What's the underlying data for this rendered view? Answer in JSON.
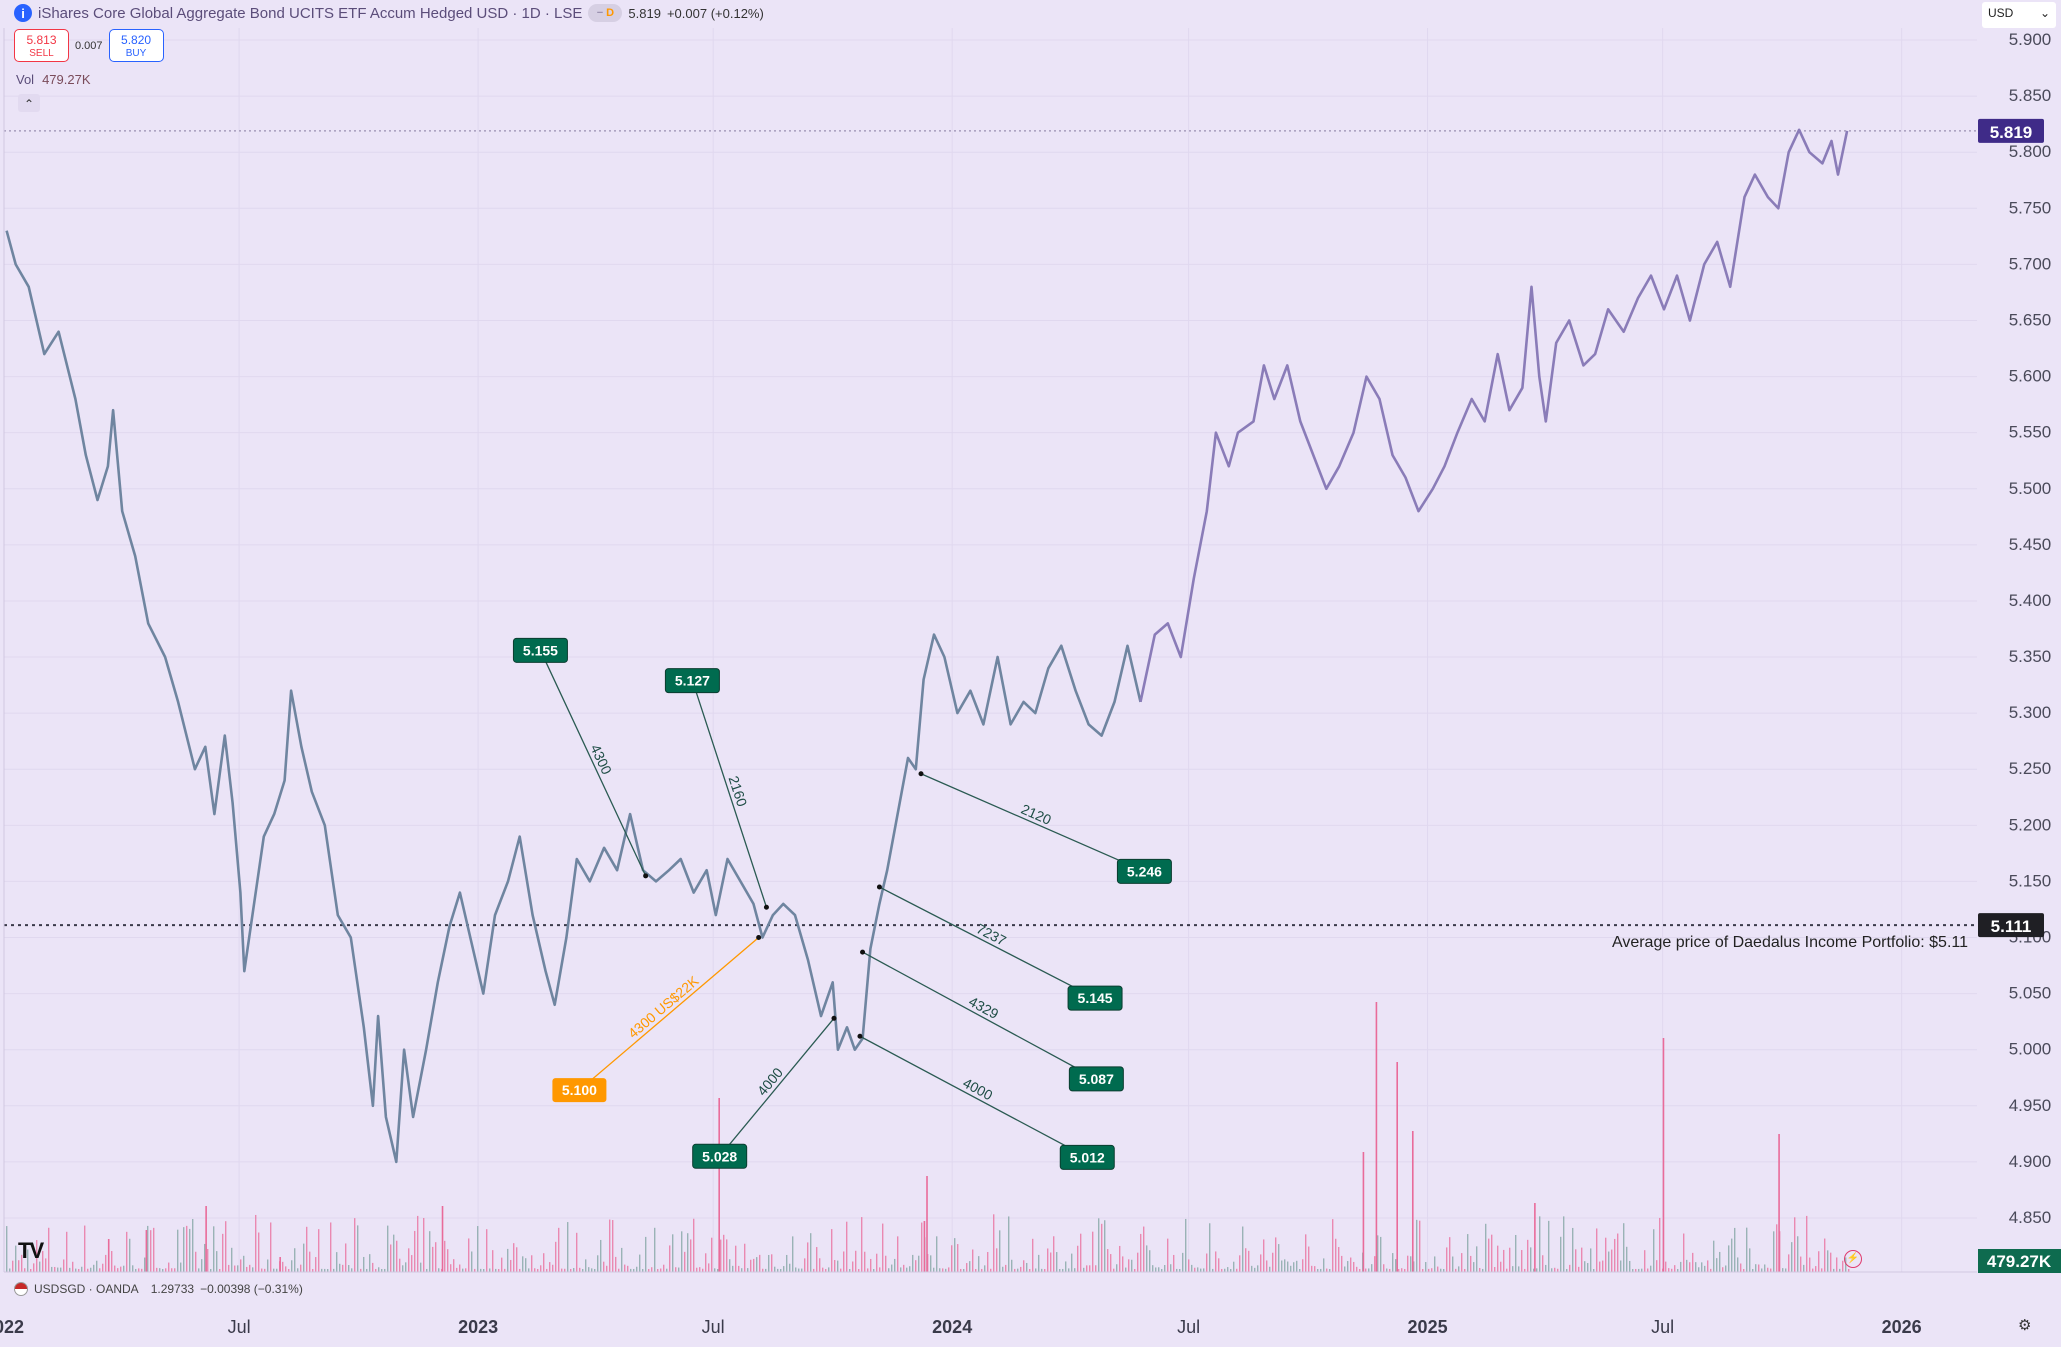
{
  "header": {
    "title": "iShares Core Global Aggregate Bond UCITS ETF Accum Hedged USD · 1D · LSE",
    "badge": "D",
    "price": "5.819",
    "change": "+0.007 (+0.12%)"
  },
  "trade": {
    "sell_price": "5.813",
    "sell_label": "SELL",
    "spread": "0.007",
    "buy_price": "5.820",
    "buy_label": "BUY"
  },
  "volume": {
    "label": "Vol",
    "value": "479.27K"
  },
  "currency_select": {
    "value": "USD"
  },
  "subchart": {
    "label": "USDSGD · OANDA",
    "value": "1.29733",
    "change": "−0.00398 (−0.31%)"
  },
  "colors": {
    "line_old": "#6f85a0",
    "line_new": "#8a7cb8",
    "accent": "#006b4f",
    "orange": "#ff9800",
    "vol_up": "#e96b9a",
    "vol_down": "#7fa3a0"
  },
  "chart_data": {
    "type": "line",
    "title": "",
    "ylim": [
      4.85,
      5.9
    ],
    "y_ticks": [
      "5.900",
      "5.850",
      "5.800",
      "5.750",
      "5.700",
      "5.650",
      "5.600",
      "5.550",
      "5.500",
      "5.450",
      "5.400",
      "5.350",
      "5.300",
      "5.250",
      "5.200",
      "5.150",
      "5.100",
      "5.050",
      "5.000",
      "4.950",
      "4.900",
      "4.850"
    ],
    "x_ticks": [
      {
        "label": "2022",
        "date": "2022-01-01"
      },
      {
        "label": "Jul",
        "date": "2022-07-01"
      },
      {
        "label": "2023",
        "date": "2023-01-01"
      },
      {
        "label": "Jul",
        "date": "2023-07-01"
      },
      {
        "label": "2024",
        "date": "2024-01-01"
      },
      {
        "label": "Jul",
        "date": "2024-07-01"
      },
      {
        "label": "2025",
        "date": "2025-01-01"
      },
      {
        "label": "Jul",
        "date": "2025-07-01"
      },
      {
        "label": "2026",
        "date": "2026-01-01"
      }
    ],
    "x_range": [
      "2022-01-01",
      "2026-02-28"
    ],
    "series": [
      {
        "values": [
          [
            "2022-01-03",
            5.73
          ],
          [
            "2022-01-10",
            5.7
          ],
          [
            "2022-01-20",
            5.68
          ],
          [
            "2022-02-01",
            5.62
          ],
          [
            "2022-02-12",
            5.64
          ],
          [
            "2022-02-25",
            5.58
          ],
          [
            "2022-03-05",
            5.53
          ],
          [
            "2022-03-14",
            5.49
          ],
          [
            "2022-03-22",
            5.52
          ],
          [
            "2022-03-26",
            5.57
          ],
          [
            "2022-04-02",
            5.48
          ],
          [
            "2022-04-12",
            5.44
          ],
          [
            "2022-04-22",
            5.38
          ],
          [
            "2022-05-05",
            5.35
          ],
          [
            "2022-05-15",
            5.31
          ],
          [
            "2022-05-28",
            5.25
          ],
          [
            "2022-06-05",
            5.27
          ],
          [
            "2022-06-12",
            5.21
          ],
          [
            "2022-06-20",
            5.28
          ],
          [
            "2022-06-26",
            5.22
          ],
          [
            "2022-07-02",
            5.14
          ],
          [
            "2022-07-05",
            5.07
          ],
          [
            "2022-07-10",
            5.11
          ],
          [
            "2022-07-20",
            5.19
          ],
          [
            "2022-07-28",
            5.21
          ],
          [
            "2022-08-05",
            5.24
          ],
          [
            "2022-08-10",
            5.32
          ],
          [
            "2022-08-18",
            5.27
          ],
          [
            "2022-08-26",
            5.23
          ],
          [
            "2022-09-05",
            5.2
          ],
          [
            "2022-09-15",
            5.12
          ],
          [
            "2022-09-25",
            5.1
          ],
          [
            "2022-10-05",
            5.02
          ],
          [
            "2022-10-12",
            4.95
          ],
          [
            "2022-10-16",
            5.03
          ],
          [
            "2022-10-22",
            4.94
          ],
          [
            "2022-10-30",
            4.9
          ],
          [
            "2022-11-05",
            5.0
          ],
          [
            "2022-11-12",
            4.94
          ],
          [
            "2022-11-22",
            5.0
          ],
          [
            "2022-12-01",
            5.06
          ],
          [
            "2022-12-10",
            5.11
          ],
          [
            "2022-12-18",
            5.14
          ],
          [
            "2022-12-26",
            5.1
          ],
          [
            "2023-01-05",
            5.05
          ],
          [
            "2023-01-14",
            5.12
          ],
          [
            "2023-01-24",
            5.15
          ],
          [
            "2023-02-02",
            5.19
          ],
          [
            "2023-02-12",
            5.12
          ],
          [
            "2023-02-22",
            5.07
          ],
          [
            "2023-03-01",
            5.04
          ],
          [
            "2023-03-10",
            5.1
          ],
          [
            "2023-03-18",
            5.17
          ],
          [
            "2023-03-28",
            5.15
          ],
          [
            "2023-04-08",
            5.18
          ],
          [
            "2023-04-18",
            5.16
          ],
          [
            "2023-04-28",
            5.21
          ],
          [
            "2023-05-08",
            5.16
          ],
          [
            "2023-05-18",
            5.15
          ],
          [
            "2023-05-28",
            5.16
          ],
          [
            "2023-06-06",
            5.17
          ],
          [
            "2023-06-16",
            5.14
          ],
          [
            "2023-06-26",
            5.16
          ],
          [
            "2023-07-03",
            5.12
          ],
          [
            "2023-07-12",
            5.17
          ],
          [
            "2023-07-22",
            5.15
          ],
          [
            "2023-08-01",
            5.13
          ],
          [
            "2023-08-08",
            5.1
          ],
          [
            "2023-08-16",
            5.12
          ],
          [
            "2023-08-24",
            5.13
          ],
          [
            "2023-09-02",
            5.12
          ],
          [
            "2023-09-12",
            5.08
          ],
          [
            "2023-09-22",
            5.03
          ],
          [
            "2023-10-01",
            5.06
          ],
          [
            "2023-10-05",
            5.0
          ],
          [
            "2023-10-12",
            5.02
          ],
          [
            "2023-10-18",
            5.0
          ],
          [
            "2023-10-24",
            5.01
          ],
          [
            "2023-10-30",
            5.09
          ],
          [
            "2023-11-06",
            5.13
          ],
          [
            "2023-11-12",
            5.16
          ],
          [
            "2023-11-20",
            5.21
          ],
          [
            "2023-11-28",
            5.26
          ],
          [
            "2023-12-04",
            5.25
          ],
          [
            "2023-12-10",
            5.33
          ],
          [
            "2023-12-18",
            5.37
          ],
          [
            "2023-12-26",
            5.35
          ],
          [
            "2024-01-05",
            5.3
          ],
          [
            "2024-01-15",
            5.32
          ],
          [
            "2024-01-25",
            5.29
          ],
          [
            "2024-02-05",
            5.35
          ],
          [
            "2024-02-15",
            5.29
          ],
          [
            "2024-02-25",
            5.31
          ],
          [
            "2024-03-05",
            5.3
          ],
          [
            "2024-03-15",
            5.34
          ],
          [
            "2024-03-25",
            5.36
          ],
          [
            "2024-04-05",
            5.32
          ],
          [
            "2024-04-15",
            5.29
          ],
          [
            "2024-04-25",
            5.28
          ],
          [
            "2024-05-05",
            5.31
          ],
          [
            "2024-05-15",
            5.36
          ],
          [
            "2024-05-25",
            5.31
          ],
          [
            "2024-06-05",
            5.37
          ],
          [
            "2024-06-15",
            5.38
          ],
          [
            "2024-06-25",
            5.35
          ],
          [
            "2024-07-05",
            5.42
          ],
          [
            "2024-07-15",
            5.48
          ],
          [
            "2024-07-22",
            5.55
          ],
          [
            "2024-08-01",
            5.52
          ],
          [
            "2024-08-08",
            5.55
          ],
          [
            "2024-08-20",
            5.56
          ],
          [
            "2024-08-28",
            5.61
          ],
          [
            "2024-09-05",
            5.58
          ],
          [
            "2024-09-15",
            5.61
          ],
          [
            "2024-09-25",
            5.56
          ],
          [
            "2024-10-05",
            5.53
          ],
          [
            "2024-10-15",
            5.5
          ],
          [
            "2024-10-25",
            5.52
          ],
          [
            "2024-11-05",
            5.55
          ],
          [
            "2024-11-15",
            5.6
          ],
          [
            "2024-11-25",
            5.58
          ],
          [
            "2024-12-05",
            5.53
          ],
          [
            "2024-12-15",
            5.51
          ],
          [
            "2024-12-25",
            5.48
          ],
          [
            "2025-01-05",
            5.5
          ],
          [
            "2025-01-14",
            5.52
          ],
          [
            "2025-01-24",
            5.55
          ],
          [
            "2025-02-04",
            5.58
          ],
          [
            "2025-02-14",
            5.56
          ],
          [
            "2025-02-24",
            5.62
          ],
          [
            "2025-03-05",
            5.57
          ],
          [
            "2025-03-15",
            5.59
          ],
          [
            "2025-03-22",
            5.68
          ],
          [
            "2025-03-28",
            5.6
          ],
          [
            "2025-04-02",
            5.56
          ],
          [
            "2025-04-10",
            5.63
          ],
          [
            "2025-04-20",
            5.65
          ],
          [
            "2025-05-01",
            5.61
          ],
          [
            "2025-05-10",
            5.62
          ],
          [
            "2025-05-20",
            5.66
          ],
          [
            "2025-06-01",
            5.64
          ],
          [
            "2025-06-12",
            5.67
          ],
          [
            "2025-06-22",
            5.69
          ],
          [
            "2025-07-02",
            5.66
          ],
          [
            "2025-07-12",
            5.69
          ],
          [
            "2025-07-22",
            5.65
          ],
          [
            "2025-08-02",
            5.7
          ],
          [
            "2025-08-12",
            5.72
          ],
          [
            "2025-08-22",
            5.68
          ],
          [
            "2025-09-02",
            5.76
          ],
          [
            "2025-09-10",
            5.78
          ],
          [
            "2025-09-20",
            5.76
          ],
          [
            "2025-09-28",
            5.75
          ],
          [
            "2025-10-06",
            5.8
          ],
          [
            "2025-10-14",
            5.82
          ],
          [
            "2025-10-22",
            5.8
          ],
          [
            "2025-11-01",
            5.79
          ],
          [
            "2025-11-08",
            5.81
          ],
          [
            "2025-11-13",
            5.78
          ],
          [
            "2025-11-20",
            5.819
          ]
        ]
      }
    ],
    "volume_spikes": [
      [
        "2022-03-22",
        11000
      ],
      [
        "2022-04-20",
        14000
      ],
      [
        "2022-06-05",
        22000
      ],
      [
        "2022-08-01",
        5000
      ],
      [
        "2022-12-04",
        22000
      ],
      [
        "2023-07-05",
        58000
      ],
      [
        "2023-12-12",
        32000
      ],
      [
        "2023-12-10",
        17000
      ],
      [
        "2024-11-12",
        40000
      ],
      [
        "2024-11-22",
        90000
      ],
      [
        "2024-12-08",
        70000
      ],
      [
        "2024-12-20",
        47000
      ],
      [
        "2025-07-01",
        78000
      ],
      [
        "2025-09-28",
        46000
      ],
      [
        "2025-03-24",
        23000
      ]
    ],
    "volume_max": 100000,
    "horizontal_lines": [
      {
        "value": 5.111,
        "label": "5.111",
        "note": "Average price of Daedalus Income Portfolio: $5.11"
      },
      {
        "value": 5.819,
        "label": "5.819"
      }
    ],
    "volume_badge": "479.27K",
    "annotations": [
      {
        "label": "5.155",
        "line_text": "4300",
        "from": [
          "2023-05-10",
          5.155
        ],
        "to": [
          "2023-02-18",
          5.356
        ],
        "color": "green"
      },
      {
        "label": "5.127",
        "line_text": "2160",
        "from": [
          "2023-08-11",
          5.127
        ],
        "to": [
          "2023-06-15",
          5.329
        ],
        "color": "green"
      },
      {
        "label": "5.100",
        "line_text": "4300 US$22K",
        "from": [
          "2023-08-05",
          5.1
        ],
        "to": [
          "2023-03-20",
          4.964
        ],
        "color": "orange"
      },
      {
        "label": "5.028",
        "line_text": "4000",
        "from": [
          "2023-10-02",
          5.028
        ],
        "to": [
          "2023-07-06",
          4.905
        ],
        "color": "green"
      },
      {
        "label": "5.246",
        "line_text": "2120",
        "from": [
          "2023-12-08",
          5.246
        ],
        "to": [
          "2024-05-28",
          5.159
        ],
        "color": "green"
      },
      {
        "label": "5.145",
        "line_text": "7237",
        "from": [
          "2023-11-06",
          5.145
        ],
        "to": [
          "2024-04-20",
          5.046
        ],
        "color": "green"
      },
      {
        "label": "5.087",
        "line_text": "4329",
        "from": [
          "2023-10-24",
          5.087
        ],
        "to": [
          "2024-04-21",
          4.974
        ],
        "color": "green"
      },
      {
        "label": "5.012",
        "line_text": "4000",
        "from": [
          "2023-10-22",
          5.012
        ],
        "to": [
          "2024-04-14",
          4.904
        ],
        "color": "green"
      }
    ]
  }
}
